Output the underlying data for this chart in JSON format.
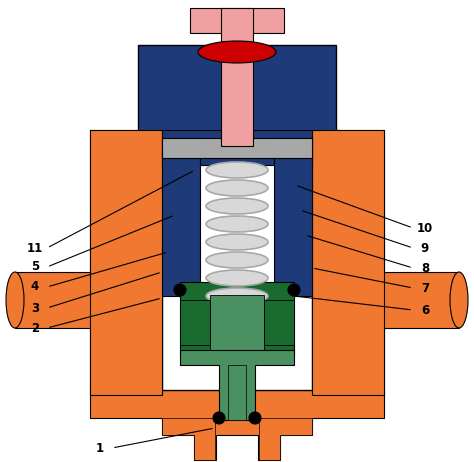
{
  "bg_color": "#ffffff",
  "orange": "#F07830",
  "dark_blue": "#1E3A78",
  "pink": "#F0A0A0",
  "red": "#CC0000",
  "green_dark": "#1A6B30",
  "green_light": "#4A9060",
  "gray": "#A8A8A8",
  "light_gray": "#D8D8D8",
  "white": "#FFFFFF",
  "black": "#000000"
}
